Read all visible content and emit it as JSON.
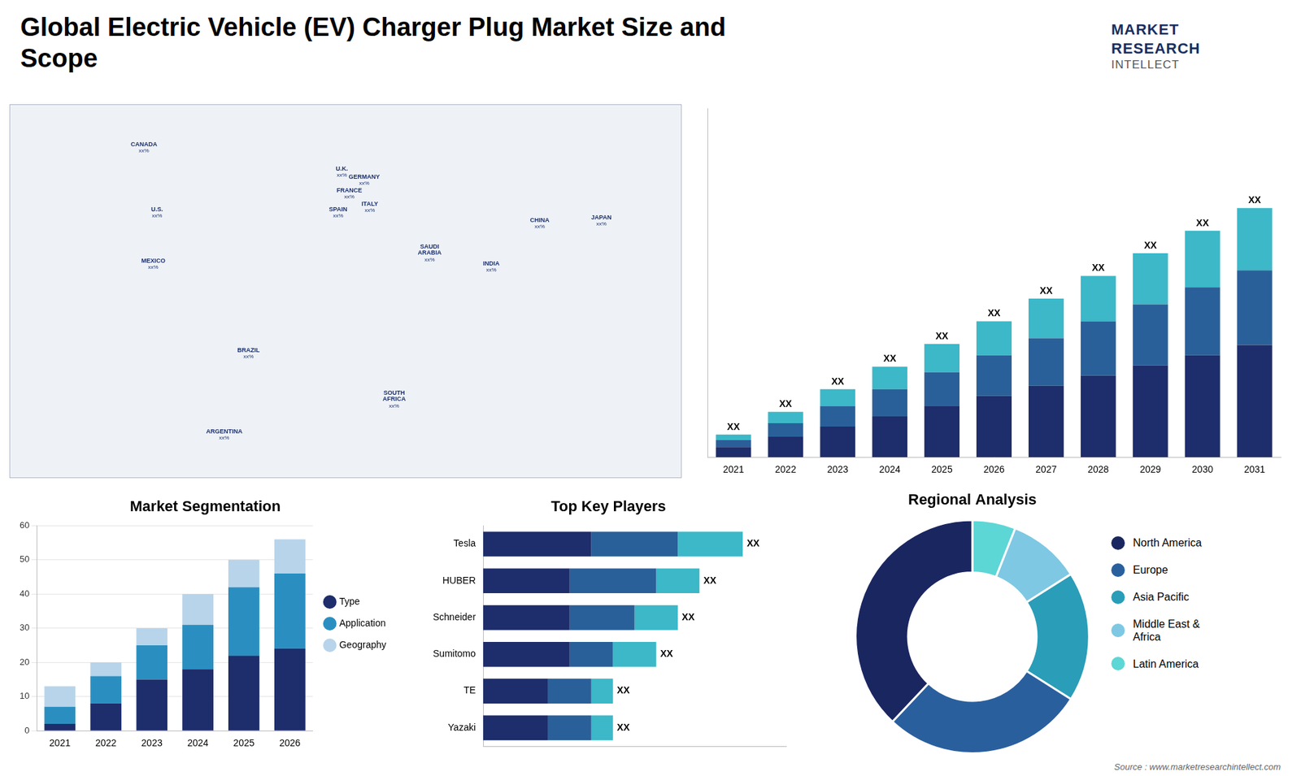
{
  "chart_data": [
    {
      "type": "map",
      "xlim": [
        -180,
        180
      ],
      "ylim": [
        -58,
        80
      ],
      "tick_labels": false,
      "annotations": [
        {
          "text": "CANADA",
          "label": "xx%",
          "x": -108,
          "y": 64
        },
        {
          "text": "U.S.",
          "label": "xx%",
          "x": -101,
          "y": 40
        },
        {
          "text": "MEXICO",
          "label": "xx%",
          "x": -103,
          "y": 21
        },
        {
          "text": "BRAZIL",
          "label": "xx%",
          "x": -52,
          "y": -12
        },
        {
          "text": "ARGENTINA",
          "label": "xx%",
          "x": -65,
          "y": -42
        },
        {
          "text": "U.K.",
          "label": "xx%",
          "x": -2,
          "y": 55
        },
        {
          "text": "FRANCE",
          "label": "xx%",
          "x": 2,
          "y": 47
        },
        {
          "text": "SPAIN",
          "label": "xx%",
          "x": -4,
          "y": 40
        },
        {
          "text": "GERMANY",
          "label": "xx%",
          "x": 10,
          "y": 52
        },
        {
          "text": "ITALY",
          "label": "xx%",
          "x": 13,
          "y": 42
        },
        {
          "text": "SAUDI\nARABIA",
          "label": "xx%",
          "x": 45,
          "y": 25
        },
        {
          "text": "SOUTH\nAFRICA",
          "label": "xx%",
          "x": 26,
          "y": -29
        },
        {
          "text": "CHINA",
          "label": "xx%",
          "x": 104,
          "y": 36
        },
        {
          "text": "INDIA",
          "label": "xx%",
          "x": 78,
          "y": 20
        },
        {
          "text": "JAPAN",
          "label": "xx%",
          "x": 137,
          "y": 37
        }
      ]
    },
    {
      "type": "bar",
      "title": "Global Electric Vehicle (EV) Charger Plug Market Size and\nScope",
      "categories": [
        "2021",
        "2022",
        "2023",
        "2024",
        "2025",
        "2026",
        "2027",
        "2028",
        "2029",
        "2030",
        "2031"
      ],
      "series": [
        {
          "color": "#1e2d6b",
          "values": [
            0.45,
            0.9,
            1.35,
            1.8,
            2.25,
            2.7,
            3.15,
            3.6,
            4.05,
            4.5,
            4.95
          ]
        },
        {
          "color": "#2a6099",
          "values": [
            0.3,
            0.6,
            0.9,
            1.2,
            1.5,
            1.8,
            2.1,
            2.4,
            2.7,
            3.0,
            3.3
          ]
        },
        {
          "color": "#3cb8c8",
          "values": [
            0.25,
            0.5,
            0.75,
            1.0,
            1.25,
            1.5,
            1.75,
            2.0,
            2.25,
            2.5,
            2.75
          ],
          "value_labels": [
            "XX",
            "XX",
            "XX",
            "XX",
            "XX",
            "XX",
            "XX",
            "XX",
            "XX",
            "XX",
            "XX"
          ]
        }
      ],
      "stacked": true,
      "ylim": [
        0,
        15.4
      ],
      "tick_labels": "x",
      "annotations": [
        {
          "text": "MARKET"
        },
        {
          "text": "RESEARCH"
        },
        {
          "text": "INTELLECT"
        },
        {
          "text": "Source : www.marketresearchintellect.com"
        }
      ]
    },
    {
      "type": "bar",
      "title": "Market Segmentation",
      "categories": [
        "2021",
        "2022",
        "2023",
        "2024",
        "2025",
        "2026"
      ],
      "series": [
        {
          "name": "Type",
          "color": "#1e2d6b",
          "values": [
            2,
            8,
            15,
            18,
            22,
            24
          ]
        },
        {
          "name": "Application",
          "color": "#2a8fc0",
          "values": [
            5,
            8,
            10,
            13,
            20,
            22
          ]
        },
        {
          "name": "Geography",
          "color": "#b8d4ea",
          "values": [
            6,
            4,
            5,
            9,
            8,
            10
          ]
        }
      ],
      "stacked": true,
      "ylim": [
        0,
        60
      ],
      "yticks": [
        0,
        10,
        20,
        30,
        40,
        50,
        60
      ],
      "grid": true,
      "legend": "right"
    },
    {
      "type": "bar",
      "orientation": "horizontal",
      "title": "Top Key Players",
      "categories": [
        "Tesla",
        "HUBER",
        "Schneider",
        "Sumitomo",
        "TE",
        "Yazaki"
      ],
      "series": [
        {
          "color": "#1e2d6b",
          "values": [
            5,
            4,
            4,
            4,
            3,
            3
          ]
        },
        {
          "color": "#2a6099",
          "values": [
            4,
            4,
            3,
            2,
            2,
            2
          ]
        },
        {
          "color": "#3cb8c8",
          "values": [
            3,
            2,
            2,
            2,
            1,
            1
          ],
          "value_labels": [
            "XX",
            "XX",
            "XX",
            "XX",
            "XX",
            "XX"
          ]
        }
      ],
      "stacked": true,
      "xlim": [
        0,
        14
      ],
      "tick_labels": "y"
    },
    {
      "type": "doughnut",
      "title": "Regional Analysis",
      "categories": [
        "Latin America",
        "Middle East &\nAfrica",
        "Asia Pacific",
        "Europe",
        "North America"
      ],
      "values": [
        6,
        10,
        18,
        28,
        38
      ],
      "colors": [
        "#5dd6d6",
        "#7ec8e3",
        "#2a9db8",
        "#2a5f9e",
        "#1a2660"
      ],
      "legend": "right"
    }
  ]
}
